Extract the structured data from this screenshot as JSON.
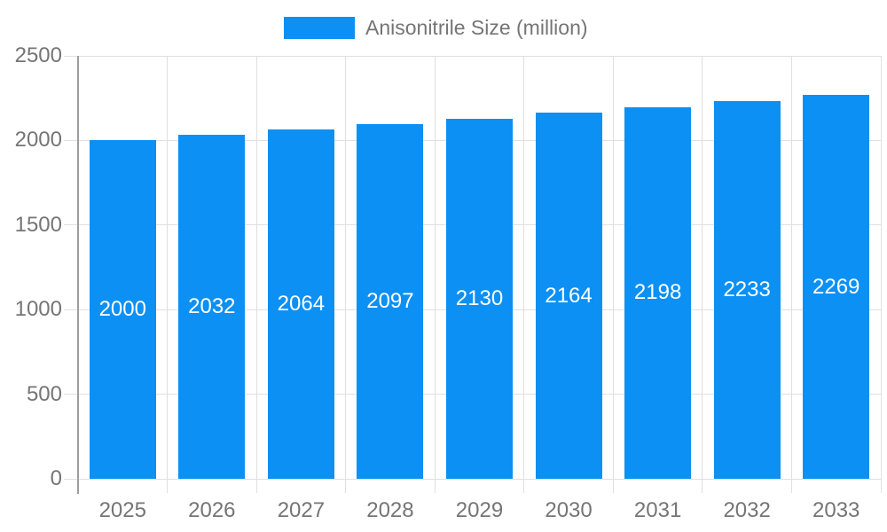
{
  "legend": {
    "label": "Anisonitrile Size (million)"
  },
  "colors": {
    "bar": "#0c90f3",
    "grid": "#e0e0e0",
    "axis_line": "#9e9e9e",
    "axis_text": "#757575",
    "value_label_text": "#ffffff",
    "background": "#ffffff"
  },
  "chart_data": {
    "type": "bar",
    "title": "",
    "xlabel": "",
    "ylabel": "",
    "categories": [
      "2025",
      "2026",
      "2027",
      "2028",
      "2029",
      "2030",
      "2031",
      "2032",
      "2033"
    ],
    "series": [
      {
        "name": "Anisonitrile Size (million)",
        "color": "#0c90f3",
        "values": [
          2000,
          2032,
          2064,
          2097,
          2130,
          2164,
          2198,
          2233,
          2269
        ]
      }
    ],
    "ylim": [
      0,
      2500
    ],
    "yticks": [
      0,
      500,
      1000,
      1500,
      2000,
      2500
    ],
    "grid": true,
    "legend_position": "top",
    "value_labels": "inside-center-white"
  }
}
